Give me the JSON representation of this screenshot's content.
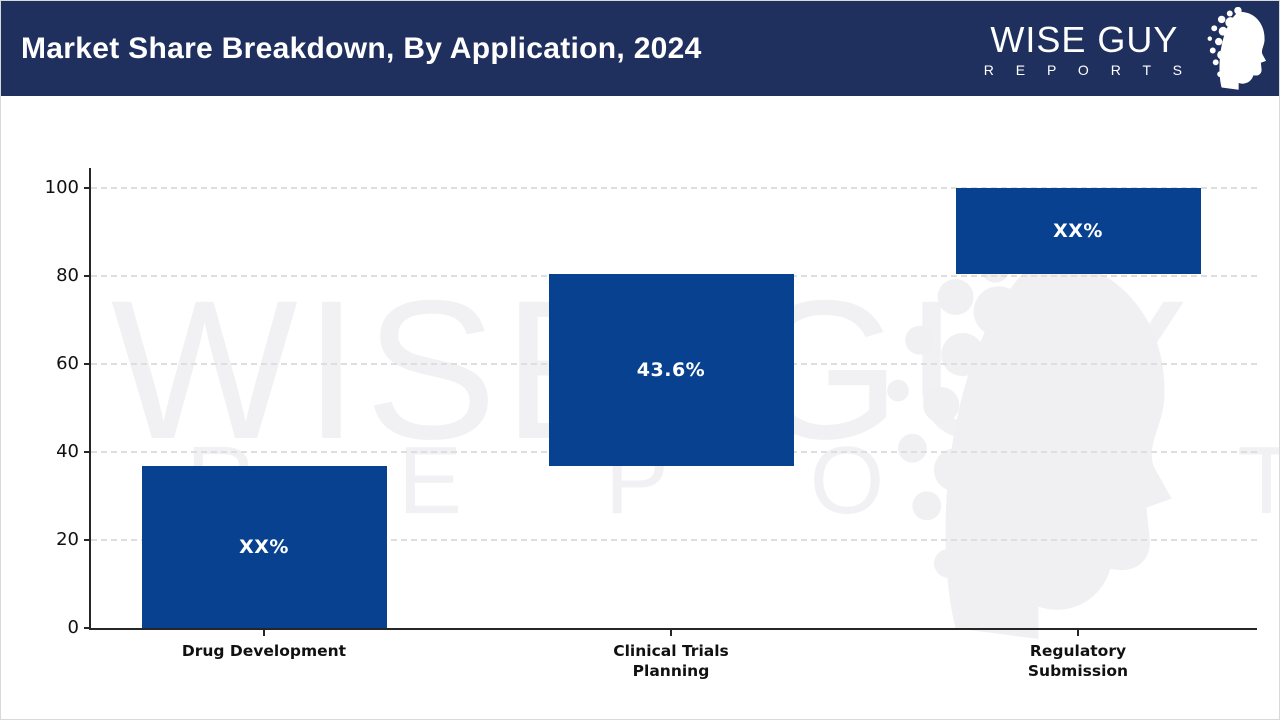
{
  "header": {
    "title": "Market Share Breakdown, By Application, 2024",
    "logo": {
      "line1": "WISE GUY",
      "line2": "R E P O R T S"
    }
  },
  "watermark": {
    "line1": "WISE GUY",
    "line2": "R E P O R T S"
  },
  "chart_data": {
    "type": "bar",
    "subtype": "waterfall",
    "title": "Market Share Breakdown, By Application, 2024",
    "xlabel": "",
    "ylabel": "",
    "ylim": [
      0,
      104
    ],
    "yticks": [
      0,
      20,
      40,
      60,
      80,
      100
    ],
    "grid": true,
    "grid_style": "dashed",
    "bar_color": "#07418f",
    "label_color": "#ffffff",
    "categories": [
      {
        "lines": [
          "Drug Development"
        ]
      },
      {
        "lines": [
          "Clinical Trials",
          "Planning"
        ]
      },
      {
        "lines": [
          "Regulatory",
          "Submission"
        ]
      }
    ],
    "segments": [
      {
        "category": "Drug Development",
        "start": 0,
        "end": 36.8,
        "label": "XX%"
      },
      {
        "category": "Clinical Trials Planning",
        "start": 36.8,
        "end": 80.4,
        "label": "43.6%"
      },
      {
        "category": "Regulatory Submission",
        "start": 80.4,
        "end": 100,
        "label": "XX%"
      }
    ]
  }
}
